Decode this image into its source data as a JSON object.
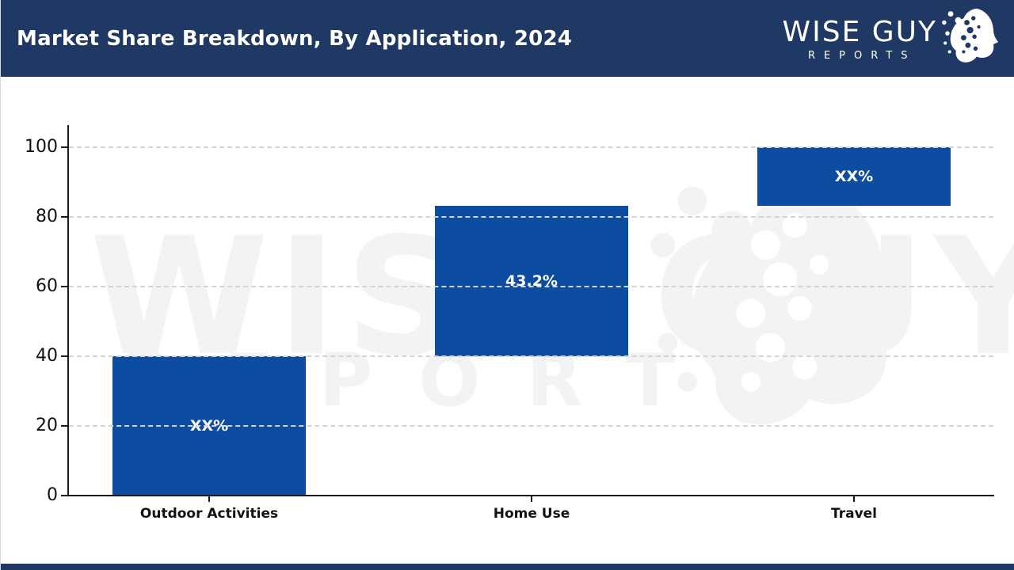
{
  "header": {
    "title": "Market Share Breakdown, By Application, 2024",
    "bg_color": "#1f3864",
    "logo": {
      "line1": "WISE GUY",
      "line2": "REPORTS"
    }
  },
  "watermark": {
    "line1": "WISE GUY",
    "line2": "REPORTS"
  },
  "chart_data": {
    "type": "bar",
    "subtype": "floating-waterfall",
    "title": "Market Share Breakdown, By Application, 2024",
    "xlabel": "",
    "ylabel": "",
    "ylim": [
      0,
      100
    ],
    "yticks": [
      0,
      20,
      40,
      60,
      80,
      100
    ],
    "grid": "horizontal-dashed",
    "legend": "none",
    "bar_color": "#0c4da2",
    "bar_label_color": "#ffffff",
    "categories": [
      "Outdoor Activities",
      "Home Use",
      "Travel"
    ],
    "segments": [
      {
        "category": "Outdoor Activities",
        "start": 0,
        "end": 40,
        "label": "XX%"
      },
      {
        "category": "Home Use",
        "start": 40,
        "end": 83.2,
        "label": "43.2%"
      },
      {
        "category": "Travel",
        "start": 83.2,
        "end": 100,
        "label": "XX%"
      }
    ]
  },
  "footer": {
    "bg_color": "#1f3864"
  }
}
